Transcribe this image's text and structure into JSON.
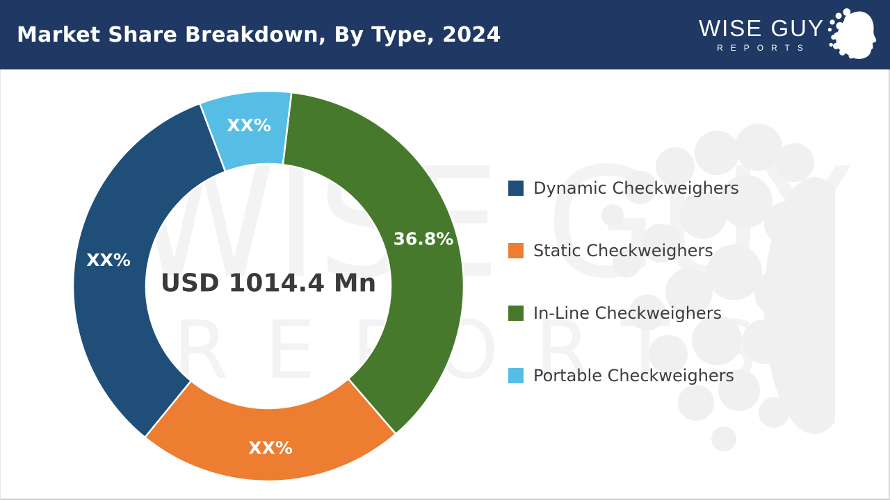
{
  "header": {
    "title": "Market Share Breakdown, By Type, 2024",
    "background_color": "#1f3864",
    "logo": {
      "line1": "WISE GUY",
      "line2": "REPORTS"
    }
  },
  "watermark": {
    "line1": "WISE GUY",
    "line2": "REPORTS"
  },
  "chart_data": {
    "type": "pie",
    "subtype": "donut",
    "title": "Market Share Breakdown, By Type, 2024",
    "center_label": "USD 1014.4 Mn",
    "start_angle_deg_clockwise_from_top": 6.8,
    "legend_position": "right",
    "segments_clockwise": [
      {
        "name": "In-Line Checkweighers",
        "display_label": "36.8%",
        "arc_pct": 36.8,
        "color": "#46792b"
      },
      {
        "name": "Static Checkweighers",
        "display_label": "XX%",
        "arc_pct": 22.2,
        "color": "#ed7d31"
      },
      {
        "name": "Dynamic Checkweighers",
        "display_label": "XX%",
        "arc_pct": 33.4,
        "color": "#1f4e79"
      },
      {
        "name": "Portable Checkweighers",
        "display_label": "XX%",
        "arc_pct": 7.6,
        "color": "#56bde5"
      }
    ]
  },
  "legend": {
    "items": [
      {
        "label": "Dynamic Checkweighers",
        "color": "#1f4e79"
      },
      {
        "label": "Static Checkweighers",
        "color": "#ed7d31"
      },
      {
        "label": "In-Line Checkweighers",
        "color": "#46792b"
      },
      {
        "label": "Portable Checkweighers",
        "color": "#56bde5"
      }
    ]
  }
}
